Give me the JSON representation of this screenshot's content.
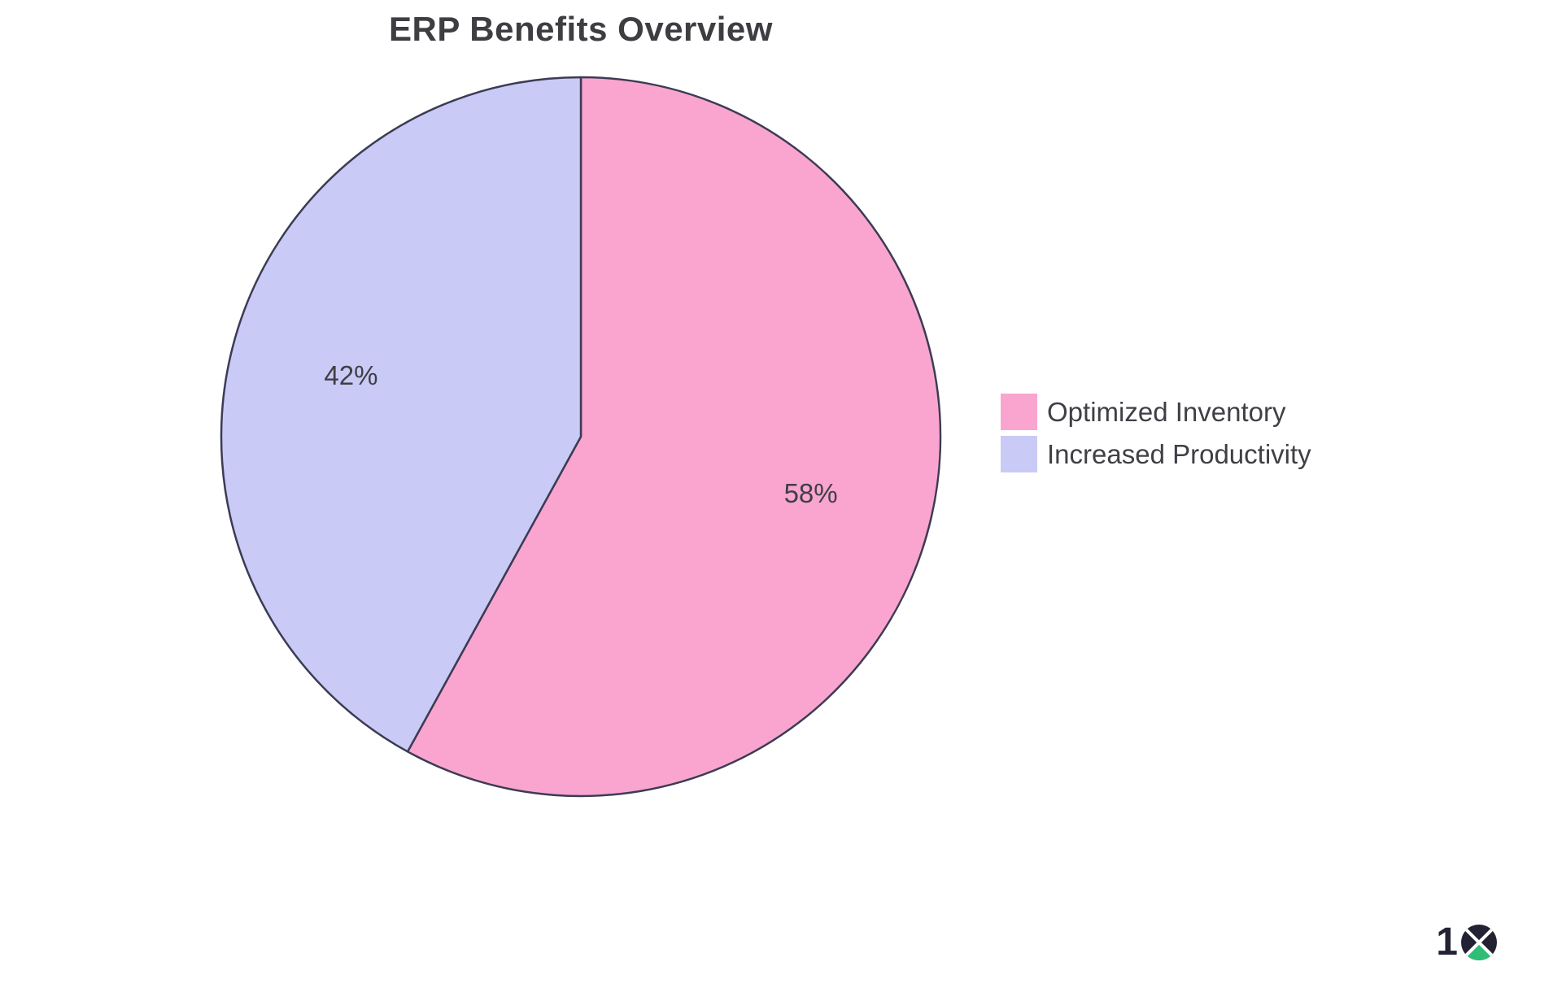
{
  "chart_data": {
    "type": "pie",
    "title": "ERP Benefits Overview",
    "slices": [
      {
        "label": "Optimized Inventory",
        "value": 58,
        "display": "58%",
        "color": "#F9A5CF"
      },
      {
        "label": "Increased Productivity",
        "value": 42,
        "display": "42%",
        "color": "#C9CAF5"
      }
    ],
    "start_angle_deg": 0,
    "direction": "clockwise",
    "legend_position": "right",
    "stroke_color": "#3C3B54",
    "label_color": "#3f3f46"
  },
  "watermark": {
    "text": "1"
  }
}
